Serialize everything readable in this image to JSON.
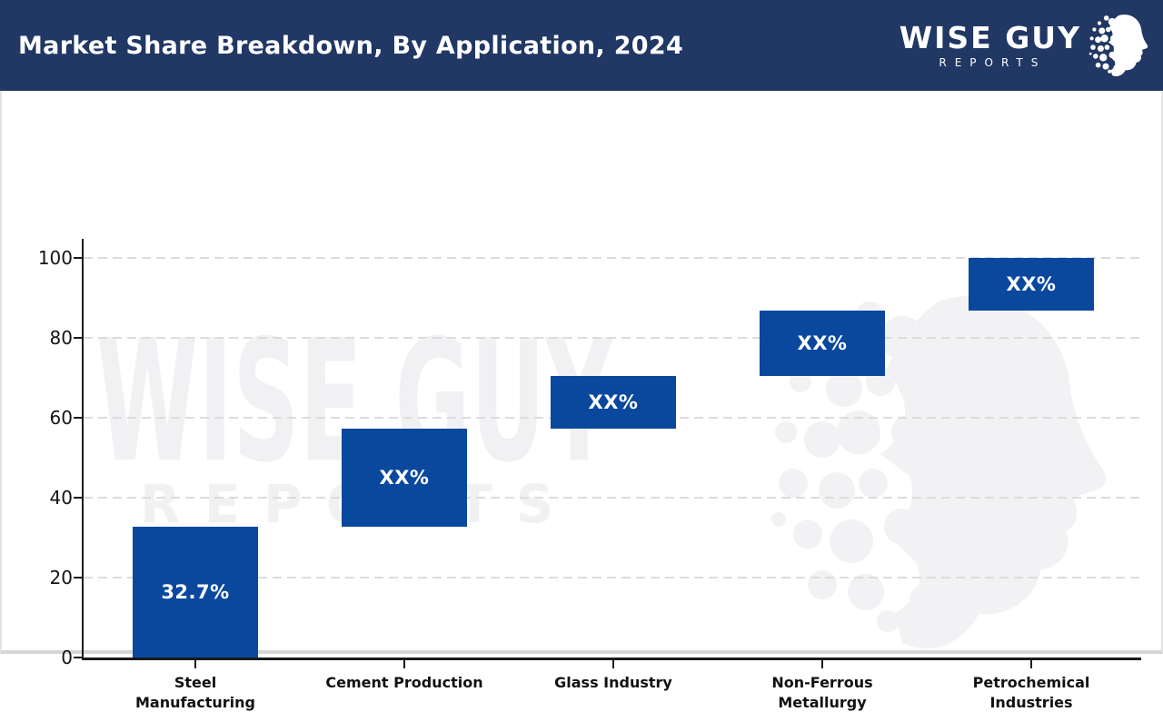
{
  "header": {
    "title": "Market Share Breakdown, By Application, 2024",
    "bg_color": "#213764",
    "logo": {
      "line1": "WISE GUY",
      "line2": "REPORTS"
    }
  },
  "watermark": {
    "line1": "WISE GUY",
    "line2": "REPORTS"
  },
  "chart_data": {
    "type": "bar",
    "subtype": "waterfall",
    "title": "Market Share Breakdown, By Application, 2024",
    "categories": [
      [
        "Steel",
        "Manufacturing"
      ],
      [
        "Cement Production"
      ],
      [
        "Glass Industry"
      ],
      [
        "Non-Ferrous",
        "Metallurgy"
      ],
      [
        "Petrochemical",
        "Industries"
      ]
    ],
    "segments": [
      {
        "category": "Steel Manufacturing",
        "start": 0,
        "end": 32.7,
        "label": "32.7%"
      },
      {
        "category": "Cement Production",
        "start": 32.7,
        "end": 57.3,
        "label": "XX%"
      },
      {
        "category": "Glass Industry",
        "start": 57.3,
        "end": 70.5,
        "label": "XX%"
      },
      {
        "category": "Non-Ferrous Metallurgy",
        "start": 70.5,
        "end": 86.8,
        "label": "XX%"
      },
      {
        "category": "Petrochemical Industries",
        "start": 86.8,
        "end": 100,
        "label": "XX%"
      }
    ],
    "yticks": [
      0,
      20,
      40,
      60,
      80,
      100
    ],
    "ylim": [
      0,
      105.4
    ],
    "xlabel": "",
    "ylabel": "",
    "bar_color": "#0a489e",
    "value_label_color": "#ffffff",
    "grid": {
      "horizontal": true,
      "style": "dashed",
      "color": "#dcdcdc"
    },
    "legend": null
  }
}
